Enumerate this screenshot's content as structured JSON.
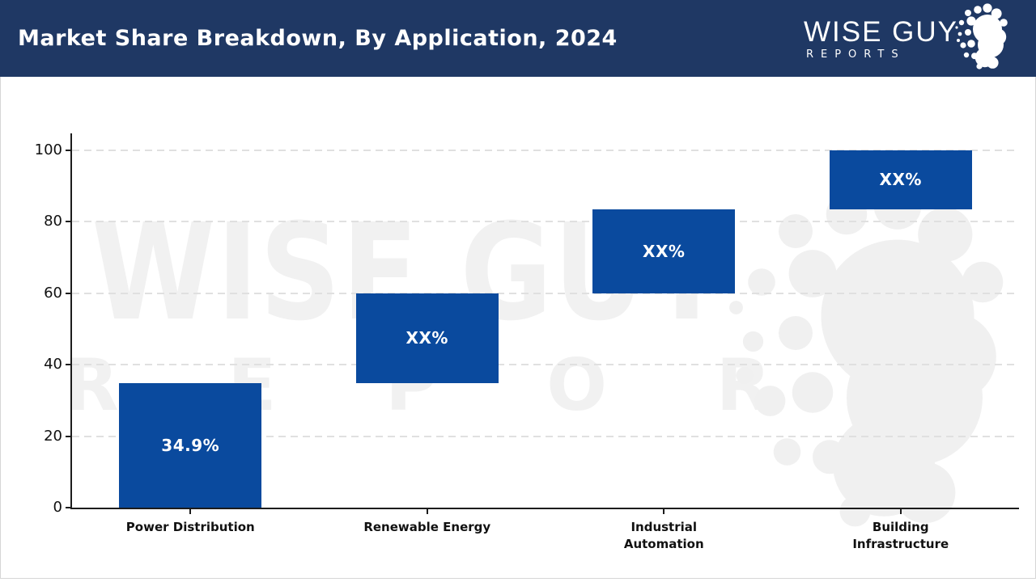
{
  "header": {
    "title": "Market Share Breakdown, By Application, 2024",
    "logo": {
      "line1": "WISE GUY",
      "line2": "REPORTS"
    }
  },
  "watermark": {
    "line1": "WISE GUY",
    "line2": "R E P O R T S"
  },
  "chart_data": {
    "type": "bar",
    "subtype": "waterfall",
    "title": "Market Share Breakdown, By Application, 2024",
    "categories": [
      "Power Distribution",
      "Renewable Energy",
      "Industrial\nAutomation",
      "Building\nInfrastructure"
    ],
    "segments": [
      {
        "category": "Power Distribution",
        "start": 0,
        "end": 34.9,
        "label": "34.9%"
      },
      {
        "category": "Renewable Energy",
        "start": 34.9,
        "end": 60.0,
        "label": "XX%"
      },
      {
        "category": "Industrial Automation",
        "start": 60.0,
        "end": 83.5,
        "label": "XX%"
      },
      {
        "category": "Building Infrastructure",
        "start": 83.5,
        "end": 100.0,
        "label": "XX%"
      }
    ],
    "yticks": [
      0,
      20,
      40,
      60,
      80,
      100
    ],
    "ylim": [
      0,
      104.7
    ],
    "xlabel": "",
    "ylabel": "",
    "grid": "dashed-horizontal",
    "legend": "none",
    "bar_color": "#0a4a9e",
    "bar_label_color": "#ffffff",
    "axis_color": "#1c1c1c",
    "header_bg": "#1f3864",
    "watermark_color": "#f1f1f1"
  }
}
